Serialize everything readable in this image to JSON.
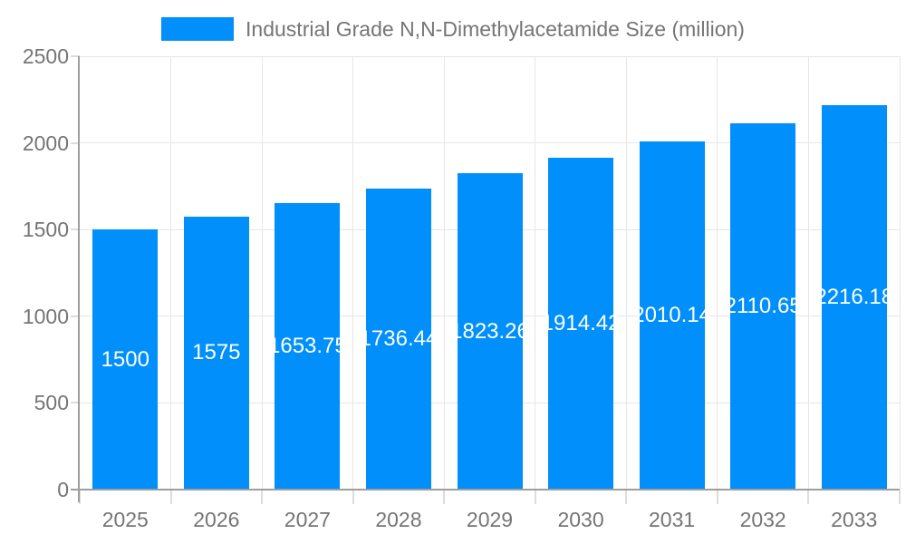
{
  "chart_data": {
    "type": "bar",
    "title": "Industrial Grade N,N-Dimethylacetamide Size (million)",
    "categories": [
      "2025",
      "2026",
      "2027",
      "2028",
      "2029",
      "2030",
      "2031",
      "2032",
      "2033"
    ],
    "values": [
      1500,
      1575,
      1653.75,
      1736.44,
      1823.26,
      1914.42,
      2010.14,
      2110.65,
      2216.18
    ],
    "bar_labels": [
      "1500",
      "1575",
      "1653.75",
      "1736.44",
      "1823.26",
      "1914.42",
      "2010.14",
      "2110.65",
      "2216.18"
    ],
    "xlabel": "",
    "ylabel": "",
    "ylim": [
      0,
      2500
    ],
    "y_ticks": [
      0,
      500,
      1000,
      1500,
      2000,
      2500
    ],
    "grid": true,
    "legend": {
      "label": "Industrial Grade N,N-Dimethylacetamide Size (million)",
      "position": "top-center",
      "swatch": "rectangle"
    },
    "colors": {
      "bar": "#008ffb",
      "axis_text": "#757575",
      "bar_label_text": "#ffffff",
      "gridline": "#e6e6e6",
      "axis_line": "#9e9e9e",
      "background": "#ffffff"
    }
  }
}
